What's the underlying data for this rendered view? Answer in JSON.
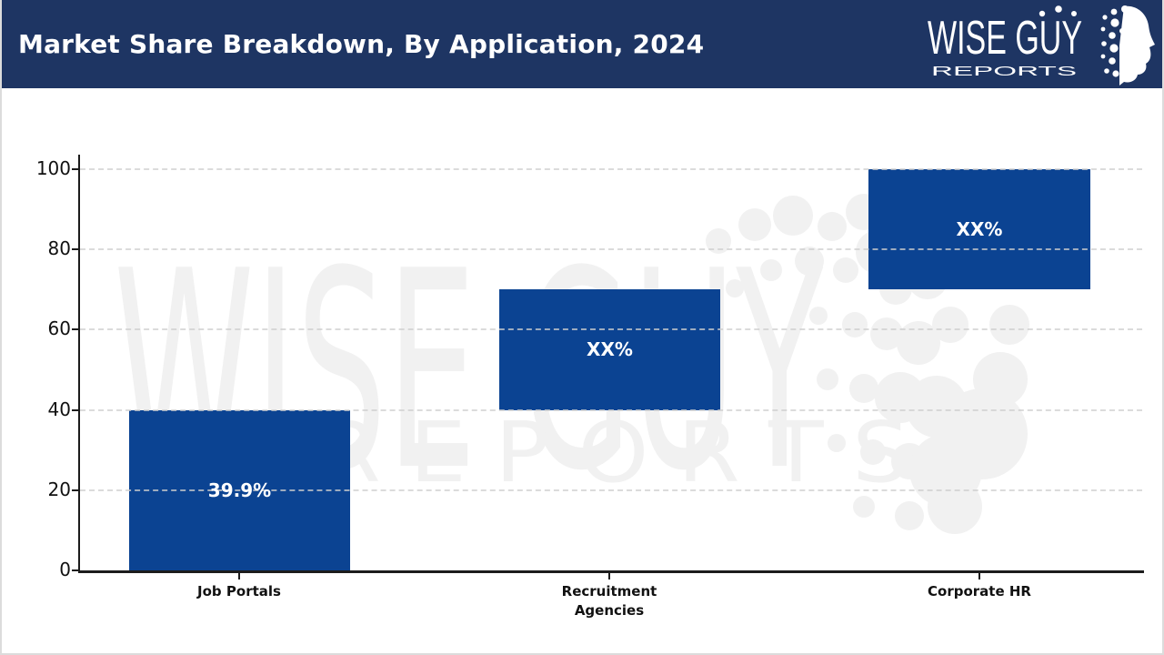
{
  "header": {
    "title": "Market Share Breakdown, By Application, 2024",
    "logo": {
      "line1": "WISE GUY",
      "line2": "REPORTS"
    }
  },
  "watermark": {
    "line1": "WISE GUY",
    "line2": "R E P O R T S"
  },
  "colors": {
    "header_bg": "#1e3563",
    "bar": "#0b4392",
    "gridline": "#cfcfcf",
    "axis": "#1c1c1c",
    "watermark": "#f1f1f1",
    "bar_label_text": "#ffffff"
  },
  "chart_data": {
    "type": "bar",
    "subtype": "floating-segment (waterfall-style market share)",
    "title": "Market Share Breakdown, By Application, 2024",
    "categories": [
      "Job Portals",
      "Recruitment Agencies",
      "Corporate HR"
    ],
    "segments": [
      {
        "category": "Job Portals",
        "start": 0,
        "end": 40,
        "label": "39.9%"
      },
      {
        "category": "Recruitment Agencies",
        "start": 40,
        "end": 70,
        "label": "XX%"
      },
      {
        "category": "Corporate HR",
        "start": 70,
        "end": 100,
        "label": "XX%"
      }
    ],
    "yticks": [
      0,
      20,
      40,
      60,
      80,
      100
    ],
    "ytick_labels": [
      "0",
      "20",
      "40",
      "60",
      "80",
      "100"
    ],
    "ylim": [
      0,
      100
    ],
    "xlabel": "",
    "ylabel": "",
    "grid": "horizontal dashed, drawn over bars",
    "legend": "none",
    "bar_color": "#0b4392"
  }
}
